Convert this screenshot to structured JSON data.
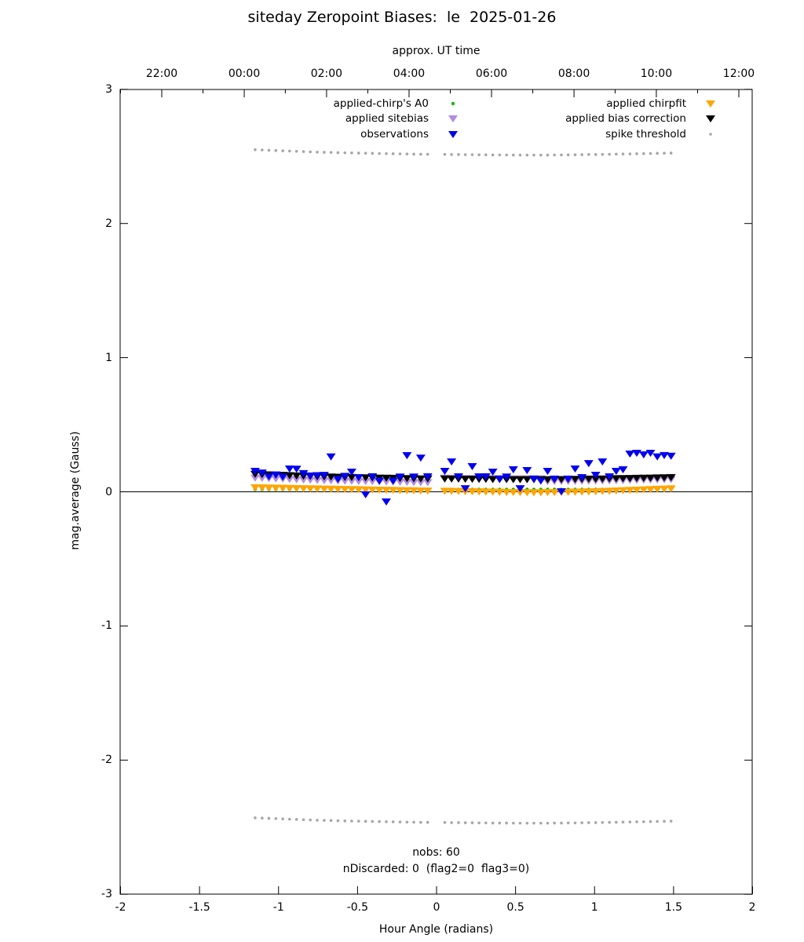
{
  "title": "siteday Zeropoint Biases:  le  2025-01-26",
  "annotations": {
    "nobs": "nobs: 60",
    "ndiscarded": "nDiscarded: 0  (flag2=0  flag3=0)"
  },
  "colors": {
    "a0_green": "#00bb00",
    "chirpfit_orange": "#ffa500",
    "sitebias_purple": "#b18be1",
    "bias_black": "#000000",
    "observations_blue": "#0000ee",
    "spike_gray": "#a6a6a6",
    "axis": "#000000"
  },
  "legend": {
    "left": [
      {
        "label": "applied-chirp's A0",
        "marker": "dot",
        "color": "#00bb00"
      },
      {
        "label": "applied sitebias",
        "marker": "triangle-down",
        "color": "#b18be1"
      },
      {
        "label": "observations",
        "marker": "triangle-down",
        "color": "#0000ee"
      }
    ],
    "right": [
      {
        "label": "applied chirpfit",
        "marker": "triangle-down",
        "color": "#ffa500"
      },
      {
        "label": "applied bias correction",
        "marker": "triangle-down",
        "color": "#000000"
      },
      {
        "label": "spike threshold",
        "marker": "small-dot",
        "color": "#a6a6a6"
      }
    ]
  },
  "chart_data": {
    "type": "scatter",
    "title": "siteday Zeropoint Biases:  le  2025-01-26",
    "xlabel": "Hour Angle (radians)",
    "ylabel": "mag.average (Gauss)",
    "x2label": "approx. UT time",
    "xlim": [
      -2,
      2
    ],
    "ylim": [
      -3,
      3
    ],
    "grid": false,
    "zero_line": true,
    "x_ticks": [
      -2,
      -1.5,
      -1,
      -0.5,
      0,
      0.5,
      1,
      1.5,
      2
    ],
    "x_tick_labels": [
      "-2",
      "-1.5",
      "-1",
      "-0.5",
      "0",
      "0.5",
      "1",
      "1.5",
      "2"
    ],
    "y_ticks": [
      3,
      2,
      1,
      0,
      -1,
      -2,
      -3
    ],
    "y_tick_labels": [
      "3",
      "2",
      "1",
      "0",
      "-1",
      "-2",
      "-3"
    ],
    "x2_ticks": {
      "labels": [
        "22:00",
        "00:00",
        "02:00",
        "04:00",
        "06:00",
        "08:00",
        "10:00",
        "12:00"
      ],
      "positions_rad": [
        -1.739,
        -1.217,
        -0.696,
        -0.174,
        0.348,
        0.87,
        1.391,
        1.913
      ],
      "minor_positions_rad": [
        -2.0,
        -1.478,
        -0.957,
        -0.435,
        0.087,
        0.609,
        1.13,
        1.652
      ]
    },
    "x": [
      -1.148,
      -1.104,
      -1.061,
      -1.017,
      -0.973,
      -0.93,
      -0.886,
      -0.842,
      -0.799,
      -0.755,
      -0.711,
      -0.668,
      -0.624,
      -0.58,
      -0.537,
      -0.493,
      -0.449,
      -0.406,
      -0.362,
      -0.318,
      -0.275,
      -0.231,
      -0.187,
      -0.144,
      -0.1,
      -0.056,
      0.052,
      0.095,
      0.139,
      0.182,
      0.226,
      0.269,
      0.312,
      0.356,
      0.399,
      0.443,
      0.486,
      0.529,
      0.573,
      0.616,
      0.66,
      0.703,
      0.746,
      0.79,
      0.833,
      0.877,
      0.92,
      0.963,
      1.007,
      1.05,
      1.094,
      1.137,
      1.18,
      1.224,
      1.267,
      1.311,
      1.354,
      1.397,
      1.441,
      1.484
    ],
    "series": [
      {
        "name": "spike threshold",
        "marker": "small-dot",
        "color": "#a6a6a6",
        "values_upper": [
          2.55,
          2.548,
          2.546,
          2.544,
          2.542,
          2.54,
          2.538,
          2.536,
          2.534,
          2.532,
          2.531,
          2.53,
          2.528,
          2.527,
          2.526,
          2.525,
          2.524,
          2.523,
          2.522,
          2.521,
          2.52,
          2.519,
          2.518,
          2.517,
          2.516,
          2.516,
          2.515,
          2.514,
          2.514,
          2.513,
          2.513,
          2.512,
          2.512,
          2.511,
          2.511,
          2.511,
          2.51,
          2.51,
          2.51,
          2.51,
          2.51,
          2.51,
          2.511,
          2.511,
          2.512,
          2.512,
          2.513,
          2.514,
          2.514,
          2.515,
          2.516,
          2.517,
          2.518,
          2.519,
          2.52,
          2.521,
          2.522,
          2.523,
          2.524,
          2.525
        ],
        "values_lower": [
          -2.43,
          -2.432,
          -2.434,
          -2.436,
          -2.438,
          -2.44,
          -2.442,
          -2.444,
          -2.446,
          -2.448,
          -2.449,
          -2.45,
          -2.452,
          -2.453,
          -2.454,
          -2.455,
          -2.456,
          -2.457,
          -2.458,
          -2.459,
          -2.46,
          -2.461,
          -2.462,
          -2.463,
          -2.464,
          -2.464,
          -2.465,
          -2.466,
          -2.466,
          -2.467,
          -2.467,
          -2.468,
          -2.468,
          -2.469,
          -2.469,
          -2.469,
          -2.47,
          -2.47,
          -2.47,
          -2.47,
          -2.47,
          -2.47,
          -2.469,
          -2.469,
          -2.468,
          -2.468,
          -2.467,
          -2.466,
          -2.466,
          -2.465,
          -2.464,
          -2.463,
          -2.462,
          -2.461,
          -2.46,
          -2.459,
          -2.458,
          -2.457,
          -2.456,
          -2.455
        ]
      },
      {
        "name": "applied-chirp's A0",
        "marker": "dot",
        "color": "#00bb00",
        "values": [
          0.018,
          0.018,
          0.018,
          0.018,
          0.018,
          0.018,
          0.018,
          0.018,
          0.018,
          0.018,
          0.018,
          0.018,
          0.018,
          0.018,
          0.018,
          0.018,
          0.018,
          0.018,
          0.018,
          0.018,
          0.018,
          0.018,
          0.018,
          0.018,
          0.018,
          0.018,
          0.018,
          0.018,
          0.018,
          0.018,
          0.018,
          0.018,
          0.018,
          0.018,
          0.018,
          0.018,
          0.018,
          0.018,
          0.018,
          0.018,
          0.018,
          0.018,
          0.018,
          0.018,
          0.018,
          0.018,
          0.018,
          0.018,
          0.018,
          0.018,
          0.018,
          0.018,
          0.018,
          0.018,
          0.018,
          0.018,
          0.018,
          0.018,
          0.018,
          0.018
        ]
      },
      {
        "name": "applied chirpfit",
        "marker": "triangle-down",
        "color": "#ffa500",
        "values": [
          0.03,
          0.029,
          0.028,
          0.027,
          0.026,
          0.025,
          0.024,
          0.023,
          0.022,
          0.021,
          0.02,
          0.019,
          0.018,
          0.017,
          0.016,
          0.015,
          0.014,
          0.013,
          0.012,
          0.011,
          0.01,
          0.009,
          0.008,
          0.007,
          0.006,
          0.005,
          0.004,
          0.003,
          0.002,
          0.001,
          0.0,
          -0.001,
          -0.002,
          -0.003,
          -0.004,
          -0.005,
          -0.006,
          -0.006,
          -0.007,
          -0.007,
          -0.007,
          -0.006,
          -0.006,
          -0.005,
          -0.004,
          -0.003,
          -0.002,
          -0.001,
          0.0,
          0.002,
          0.004,
          0.006,
          0.008,
          0.01,
          0.012,
          0.014,
          0.016,
          0.018,
          0.02,
          0.022
        ]
      },
      {
        "name": "applied sitebias",
        "marker": "triangle-down",
        "color": "#b18be1",
        "values": [
          0.102,
          0.1,
          0.098,
          0.096,
          0.094,
          0.092,
          0.09,
          0.088,
          0.086,
          0.084,
          0.083,
          0.082,
          0.08,
          0.079,
          0.078,
          0.077,
          0.076,
          0.075,
          0.074,
          0.073,
          0.072,
          0.071,
          0.07,
          0.069,
          0.068,
          0.068,
          0.101,
          0.1,
          0.1,
          0.099,
          0.099,
          0.098,
          0.098,
          0.097,
          0.097,
          0.097,
          0.096,
          0.096,
          0.096,
          0.096,
          0.096,
          0.075,
          0.076,
          0.076,
          0.077,
          0.077,
          0.078,
          0.079,
          0.079,
          0.08,
          0.081,
          0.082,
          0.083,
          0.084,
          0.085,
          0.086,
          0.087,
          0.088,
          0.089,
          0.09
        ]
      },
      {
        "name": "applied bias correction",
        "marker": "triangle-down",
        "color": "#000000",
        "values": [
          0.13,
          0.128,
          0.126,
          0.124,
          0.122,
          0.12,
          0.118,
          0.116,
          0.114,
          0.112,
          0.111,
          0.11,
          0.108,
          0.107,
          0.106,
          0.105,
          0.104,
          0.103,
          0.102,
          0.101,
          0.1,
          0.099,
          0.098,
          0.097,
          0.096,
          0.096,
          0.095,
          0.094,
          0.094,
          0.093,
          0.093,
          0.092,
          0.092,
          0.091,
          0.091,
          0.091,
          0.09,
          0.09,
          0.09,
          0.09,
          0.09,
          0.09,
          0.091,
          0.091,
          0.092,
          0.092,
          0.093,
          0.094,
          0.094,
          0.095,
          0.096,
          0.097,
          0.098,
          0.099,
          0.1,
          0.101,
          0.102,
          0.103,
          0.104,
          0.105
        ]
      },
      {
        "name": "observations",
        "marker": "triangle-down",
        "color": "#0000ee",
        "values": [
          0.152,
          0.14,
          0.112,
          0.125,
          0.11,
          0.17,
          0.168,
          0.135,
          0.118,
          0.12,
          0.122,
          0.26,
          0.092,
          0.115,
          0.146,
          0.105,
          -0.023,
          0.112,
          0.08,
          -0.076,
          0.08,
          0.11,
          0.269,
          0.11,
          0.251,
          0.112,
          0.152,
          0.222,
          0.111,
          0.023,
          0.187,
          0.111,
          0.112,
          0.146,
          0.094,
          0.11,
          0.164,
          0.023,
          0.158,
          0.094,
          0.08,
          0.152,
          0.094,
          0.0,
          0.094,
          0.17,
          0.105,
          0.21,
          0.123,
          0.222,
          0.111,
          0.152,
          0.164,
          0.281,
          0.287,
          0.275,
          0.287,
          0.26,
          0.27,
          0.265
        ]
      }
    ]
  }
}
